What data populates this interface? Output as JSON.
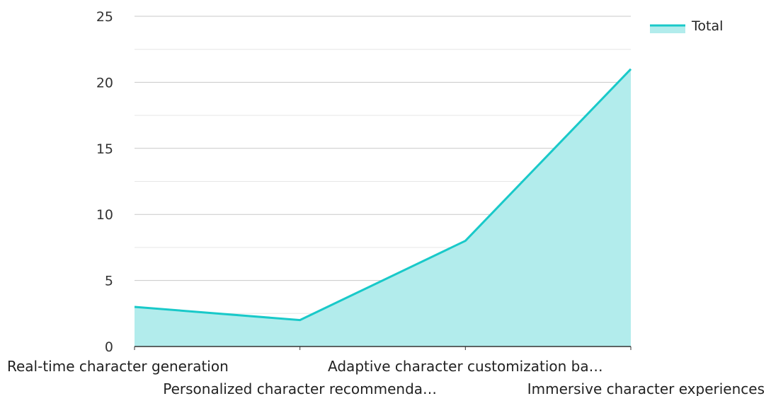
{
  "chart_data": {
    "type": "area",
    "title": "",
    "xlabel": "",
    "ylabel": "",
    "categories": [
      "Real-time character generation",
      "Personalized character recommenda…",
      "Adaptive character customization ba…",
      "Immersive character experiences"
    ],
    "series": [
      {
        "name": "Total",
        "values": [
          3,
          2,
          8,
          21
        ]
      }
    ],
    "ylim": [
      0,
      25
    ],
    "yticks": [
      0,
      5,
      10,
      15,
      20,
      25
    ],
    "y_tick_labels": [
      "0",
      "5",
      "10",
      "15",
      "20",
      "25"
    ],
    "grid": true,
    "legend_position": "top-right",
    "colors": {
      "line": "#19c9c9",
      "fill": "#b2ecec",
      "grid_major": "#c8c8c8",
      "grid_minor": "#e6e6e6",
      "axis": "#333333"
    }
  }
}
